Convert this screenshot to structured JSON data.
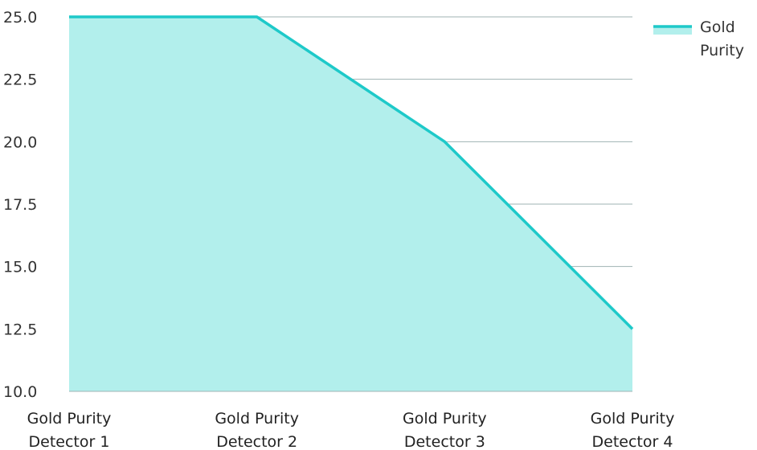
{
  "colors": {
    "line": "#1ec9c9",
    "fill": "#b2efec",
    "grid": "#9fb3b3",
    "axis": "#9fb3b3"
  },
  "chart_data": {
    "type": "area",
    "categories": [
      [
        "Gold Purity",
        "Detector 1"
      ],
      [
        "Gold Purity",
        "Detector 2"
      ],
      [
        "Gold Purity",
        "Detector 3"
      ],
      [
        "Gold Purity",
        "Detector 4"
      ]
    ],
    "series": [
      {
        "name": "Gold Purity",
        "legend_lines": [
          "Gold",
          "Purity"
        ],
        "values": [
          25.0,
          25.0,
          20.0,
          12.5
        ]
      }
    ],
    "ylim": [
      10.0,
      25.0
    ],
    "yticks": [
      "10.0",
      "12.5",
      "15.0",
      "17.5",
      "20.0",
      "22.5",
      "25.0"
    ],
    "grid": true,
    "legend_position": "top-right"
  }
}
